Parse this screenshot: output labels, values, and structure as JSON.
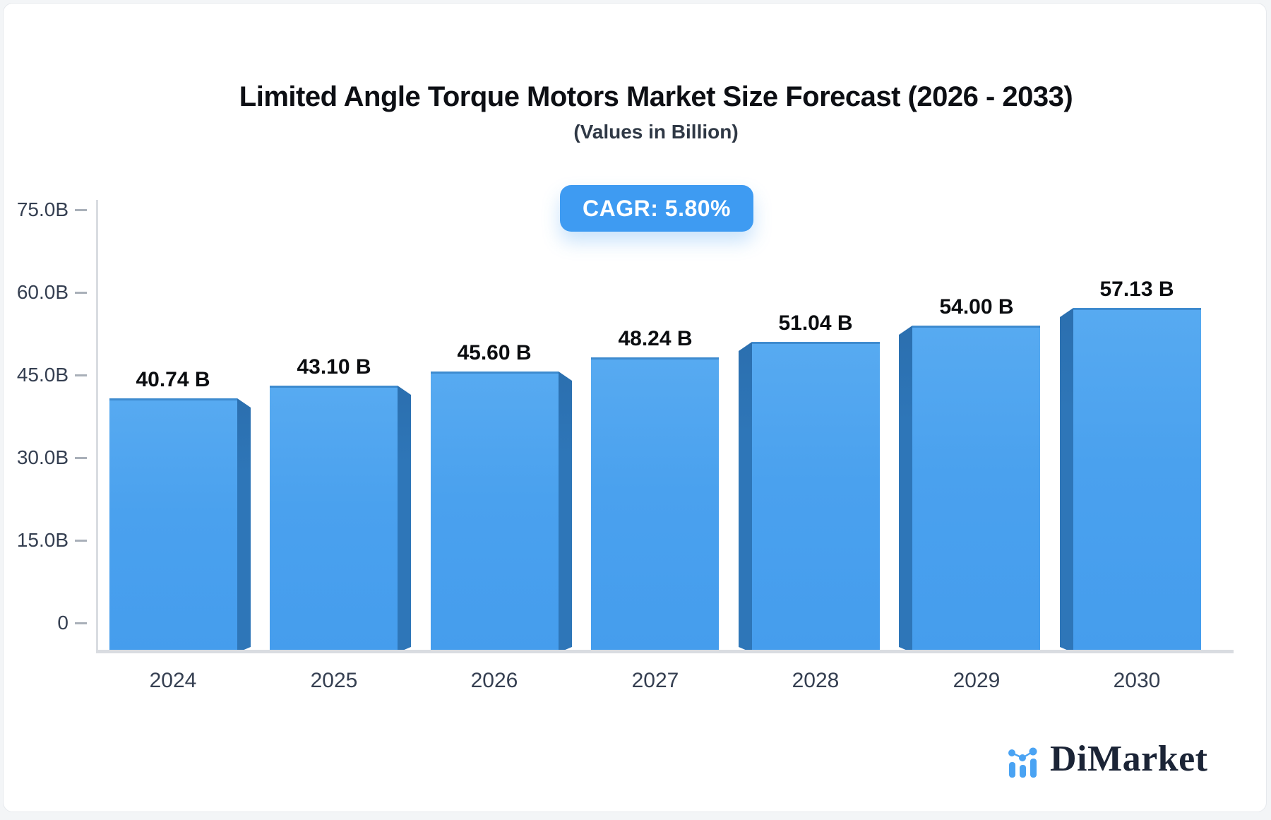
{
  "header": {
    "title": "Limited Angle Torque Motors Market Size Forecast (2026 - 2033)",
    "subtitle": "(Values in Billion)",
    "cagr_badge": "CAGR: 5.80%"
  },
  "chart_data": {
    "type": "bar",
    "title": "Limited Angle Torque Motors Market Size Forecast (2026 - 2033)",
    "subtitle": "(Values in Billion)",
    "categories": [
      "2024",
      "2025",
      "2026",
      "2027",
      "2028",
      "2029",
      "2030"
    ],
    "values": [
      40.74,
      43.1,
      45.6,
      48.24,
      51.04,
      54.0,
      57.13
    ],
    "bar_labels": [
      "40.74 B",
      "43.10 B",
      "45.60 B",
      "48.24 B",
      "51.04 B",
      "54.00 B",
      "57.13 B"
    ],
    "cagr": "5.80%",
    "unit": "Billion",
    "ylim": [
      0,
      75
    ],
    "ytick_labels": [
      "75.0B",
      "60.0B",
      "45.0B",
      "30.0B",
      "15.0B",
      "0"
    ],
    "grid": false,
    "legend": false
  },
  "colors": {
    "bar_face": "#459ded",
    "bar_side": "#2e76b8",
    "badge_bg": "#3e9bf2",
    "axis_text": "#353f51",
    "value_text": "#0b0d10",
    "logo_blue": "#4aa3f3",
    "logo_navy": "#1b2436"
  },
  "branding": {
    "logo_text": "DiMarket",
    "logo_icon": "mini-bar-chart-trend-icon"
  }
}
